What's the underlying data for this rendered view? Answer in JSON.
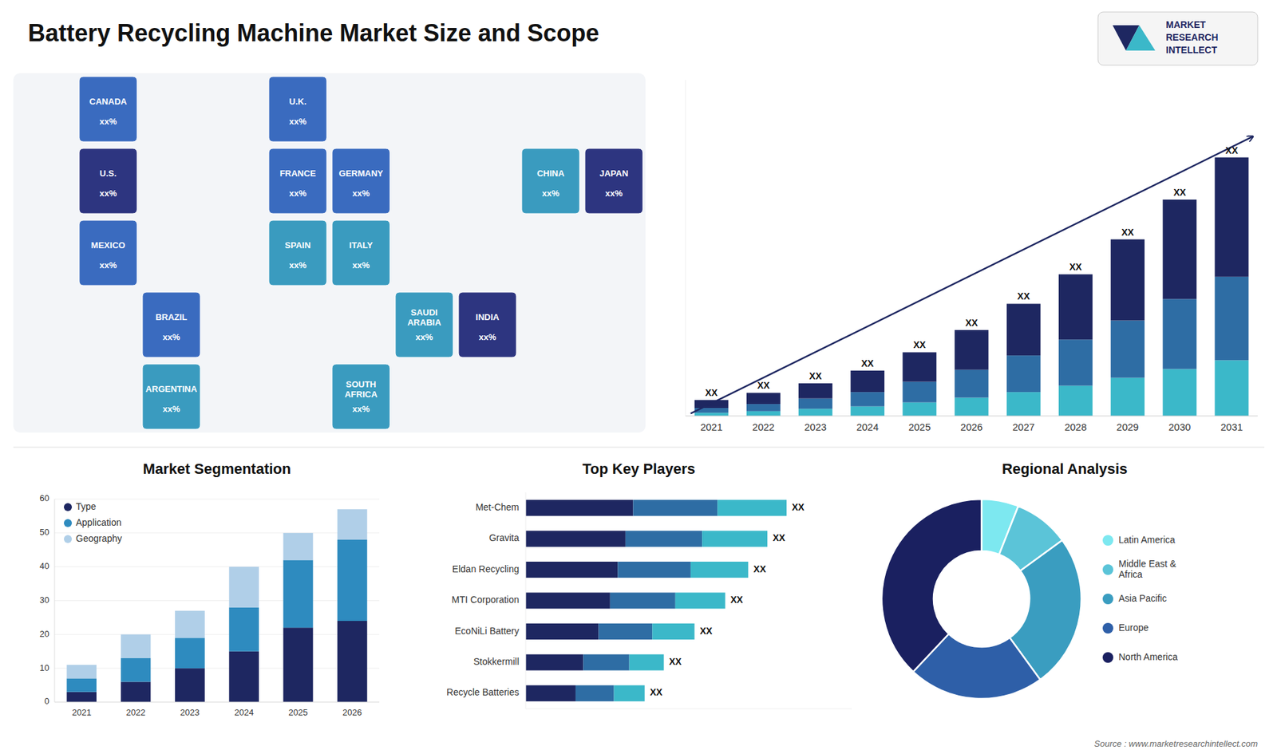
{
  "chart_data": [
    {
      "type": "map",
      "categories": [
        "CANADA",
        "U.S.",
        "MEXICO",
        "BRAZIL",
        "ARGENTINA",
        "U.K.",
        "FRANCE",
        "SPAIN",
        "GERMANY",
        "ITALY",
        "SAUDI\nARABIA",
        "SOUTH\nAFRICA",
        "CHINA",
        "JAPAN",
        "INDIA"
      ],
      "colors": [
        "#3a6bbf",
        "#2d3580",
        "#3a6bbf",
        "#3a6bbf",
        "#3a9bbf",
        "#3a6bbf",
        "#3a6bbf",
        "#3a9bbf",
        "#3a6bbf",
        "#3a9bbf",
        "#3a9bbf",
        "#3a9bbf",
        "#3a9bbf",
        "#2d3580",
        "#2d3580"
      ],
      "annotations": [
        "xx%",
        "xx%",
        "xx%",
        "xx%",
        "xx%",
        "xx%",
        "xx%",
        "xx%",
        "xx%",
        "xx%",
        "xx%",
        "xx%",
        "xx%",
        "xx%",
        "xx%"
      ]
    },
    {
      "type": "bar",
      "title": "Battery Recycling Machine Market Size and Scope",
      "stacked": true,
      "categories": [
        "2021",
        "2022",
        "2023",
        "2024",
        "2025",
        "2026",
        "2027",
        "2028",
        "2029",
        "2030",
        "2031"
      ],
      "series": [
        {
          "color": "#3bb8c9",
          "values": [
            0.4,
            0.6,
            0.9,
            1.2,
            1.7,
            2.3,
            3.0,
            3.8,
            4.8,
            5.9,
            7.0
          ]
        },
        {
          "color": "#2e6da4",
          "values": [
            0.6,
            0.9,
            1.3,
            1.8,
            2.6,
            3.5,
            4.6,
            5.8,
            7.2,
            8.8,
            10.5
          ]
        },
        {
          "color": "#1e2761",
          "values": [
            1.0,
            1.4,
            1.9,
            2.7,
            3.7,
            5.0,
            6.5,
            8.2,
            10.2,
            12.5,
            15.0
          ]
        }
      ],
      "ylim": [
        0,
        42.25
      ],
      "tick_labels": "x",
      "annotations": [
        "XX",
        "XX",
        "XX",
        "XX",
        "XX",
        "XX",
        "XX",
        "XX",
        "XX",
        "XX",
        "XX"
      ]
    },
    {
      "type": "bar",
      "title": "Market Segmentation",
      "stacked": true,
      "categories": [
        "2021",
        "2022",
        "2023",
        "2024",
        "2025",
        "2026"
      ],
      "series": [
        {
          "name": "Type",
          "color": "#1e2761",
          "values": [
            3,
            6,
            10,
            15,
            22,
            24
          ]
        },
        {
          "name": "Application",
          "color": "#2e8bbf",
          "values": [
            4,
            7,
            9,
            13,
            20,
            24
          ]
        },
        {
          "name": "Geography",
          "color": "#b0cfe8",
          "values": [
            4,
            7,
            8,
            12,
            8,
            9
          ]
        }
      ],
      "ylim": [
        0,
        60
      ],
      "yticks": [
        0,
        10,
        20,
        30,
        40,
        50,
        60
      ],
      "grid": true,
      "legend": "upper left"
    },
    {
      "type": "bar",
      "title": "Top Key Players",
      "orientation": "horizontal",
      "stacked": true,
      "categories": [
        "Met-Chem",
        "Gravita",
        "Eldan Recycling",
        "MTI Corporation",
        "EcoNiLi Battery",
        "Stokkermill",
        "Recycle Batteries"
      ],
      "series": [
        {
          "color": "#1e2761",
          "values": [
            0.28,
            0.26,
            0.24,
            0.22,
            0.19,
            0.15,
            0.13
          ]
        },
        {
          "color": "#2e6da4",
          "values": [
            0.22,
            0.2,
            0.19,
            0.17,
            0.14,
            0.12,
            0.1
          ]
        },
        {
          "color": "#3bb8c9",
          "values": [
            0.18,
            0.17,
            0.15,
            0.13,
            0.11,
            0.09,
            0.08
          ]
        }
      ],
      "xlim": [
        0,
        0.85
      ],
      "tick_labels": "y",
      "annotations": [
        "XX",
        "XX",
        "XX",
        "XX",
        "XX",
        "XX",
        "XX"
      ]
    },
    {
      "type": "donut",
      "title": "Regional Analysis",
      "categories": [
        "Latin America",
        "Middle East &\nAfrica",
        "Asia Pacific",
        "Europe",
        "North America"
      ],
      "values": [
        6,
        9,
        25,
        22,
        38
      ],
      "colors": [
        "#7de8f0",
        "#5bc4d8",
        "#3a9dc0",
        "#2e5fa8",
        "#1a2060"
      ],
      "legend": "right",
      "annotations": [
        "MARKET",
        "RESEARCH",
        "INTELLECT",
        "Source : www.marketresearchintellect.com"
      ]
    }
  ]
}
